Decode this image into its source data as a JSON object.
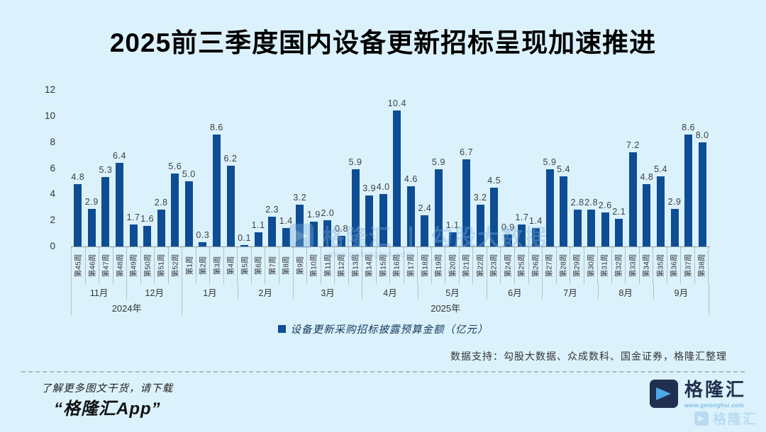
{
  "title": "2025前三季度国内设备更新招标呈现加速推进",
  "chart_data": {
    "type": "bar",
    "title": "2025前三季度国内设备更新招标呈现加速推进",
    "legend": "设备更新采购招标披露预算金额（亿元）",
    "xlabel": "",
    "ylabel": "",
    "ylim": [
      0,
      12
    ],
    "yticks": [
      0,
      2,
      4,
      6,
      8,
      10,
      12
    ],
    "grid": false,
    "legend_position": "bottom",
    "bar_color": "#0e4d94",
    "background_color": "#dbf2fc",
    "categories": [
      "第45周",
      "第46周",
      "第47周",
      "第48周",
      "第49周",
      "第50周",
      "第51周",
      "第52周",
      "第1周",
      "第2周",
      "第3周",
      "第4周",
      "第5周",
      "第6周",
      "第7周",
      "第8周",
      "第9周",
      "第10周",
      "第11周",
      "第12周",
      "第13周",
      "第14周",
      "第15周",
      "第16周",
      "第17周",
      "第18周",
      "第19周",
      "第20周",
      "第21周",
      "第22周",
      "第23周",
      "第24周",
      "第25周",
      "第26周",
      "第27周",
      "第28周",
      "第29周",
      "第30周",
      "第31周",
      "第32周",
      "第33周",
      "第34周",
      "第35周",
      "第36周",
      "第37周",
      "第38周"
    ],
    "values": [
      4.8,
      2.9,
      5.3,
      6.4,
      1.7,
      1.6,
      2.8,
      5.6,
      5.0,
      0.3,
      8.6,
      6.2,
      0.1,
      1.1,
      2.3,
      1.4,
      3.2,
      1.9,
      2.0,
      0.8,
      5.9,
      3.9,
      4.0,
      10.4,
      4.6,
      2.4,
      5.9,
      1.1,
      6.7,
      3.2,
      4.5,
      0.9,
      1.7,
      1.4,
      5.9,
      5.4,
      2.8,
      2.8,
      2.6,
      2.1,
      7.2,
      4.8,
      5.4,
      2.9,
      8.6,
      8.0
    ],
    "month_groups": [
      {
        "label": "11月",
        "span": 4
      },
      {
        "label": "12月",
        "span": 4
      },
      {
        "label": "1月",
        "span": 4
      },
      {
        "label": "2月",
        "span": 4
      },
      {
        "label": "3月",
        "span": 5
      },
      {
        "label": "4月",
        "span": 4
      },
      {
        "label": "5月",
        "span": 5
      },
      {
        "label": "6月",
        "span": 4
      },
      {
        "label": "7月",
        "span": 4
      },
      {
        "label": "8月",
        "span": 4
      },
      {
        "label": "9月",
        "span": 4
      }
    ],
    "year_groups": [
      {
        "label": "2024年",
        "span": 8
      },
      {
        "label": "2025年",
        "span": 38
      }
    ]
  },
  "source_note": "数据支持：勾股大数据、众成数科、国金证券，格隆汇整理",
  "watermark": {
    "center_text": "格隆汇 丨 勾股大数据",
    "center_site": "www.gelonghui.com",
    "corner_text": "格隆汇"
  },
  "footer": {
    "promo_line1": "了解更多图文干货，请下载",
    "promo_line2": "“格隆汇App”",
    "brand_name": "格隆汇",
    "brand_site": "www.gelonghui.com"
  }
}
